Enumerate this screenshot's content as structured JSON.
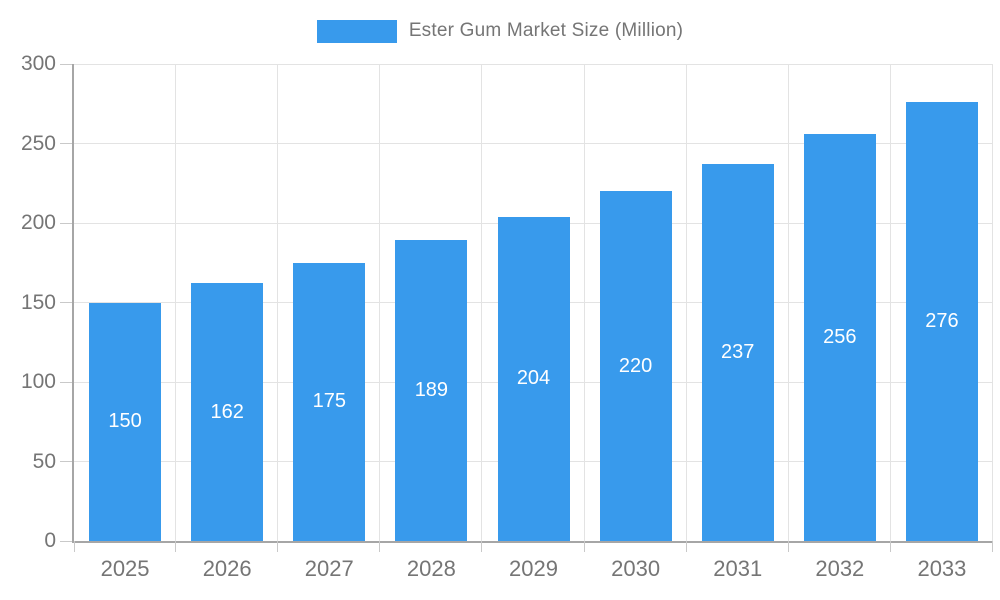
{
  "chart_data": {
    "type": "bar",
    "title": "Ester Gum Market Size (Million)",
    "series_name": "Ester Gum Market Size (Million)",
    "categories": [
      "2025",
      "2026",
      "2027",
      "2028",
      "2029",
      "2030",
      "2031",
      "2032",
      "2033"
    ],
    "values": [
      150,
      162,
      175,
      189,
      204,
      220,
      237,
      256,
      276
    ],
    "data_labels": [
      "150",
      "162",
      "175",
      "189",
      "204",
      "220",
      "237",
      "256",
      "276"
    ],
    "xlabel": "",
    "ylabel": "",
    "ylim": [
      0,
      300
    ],
    "yticks": [
      0,
      50,
      100,
      150,
      200,
      250,
      300
    ],
    "grid": true,
    "legend_position": "top",
    "colors": {
      "bar": "#389AEC",
      "value_label": "#ffffff",
      "axis_label": "#757575",
      "axis_line": "#a6a6a6",
      "gridline": "#e3e3e3",
      "tick": "#c9c9c9",
      "legend_text": "#757575",
      "background": "#ffffff"
    }
  }
}
